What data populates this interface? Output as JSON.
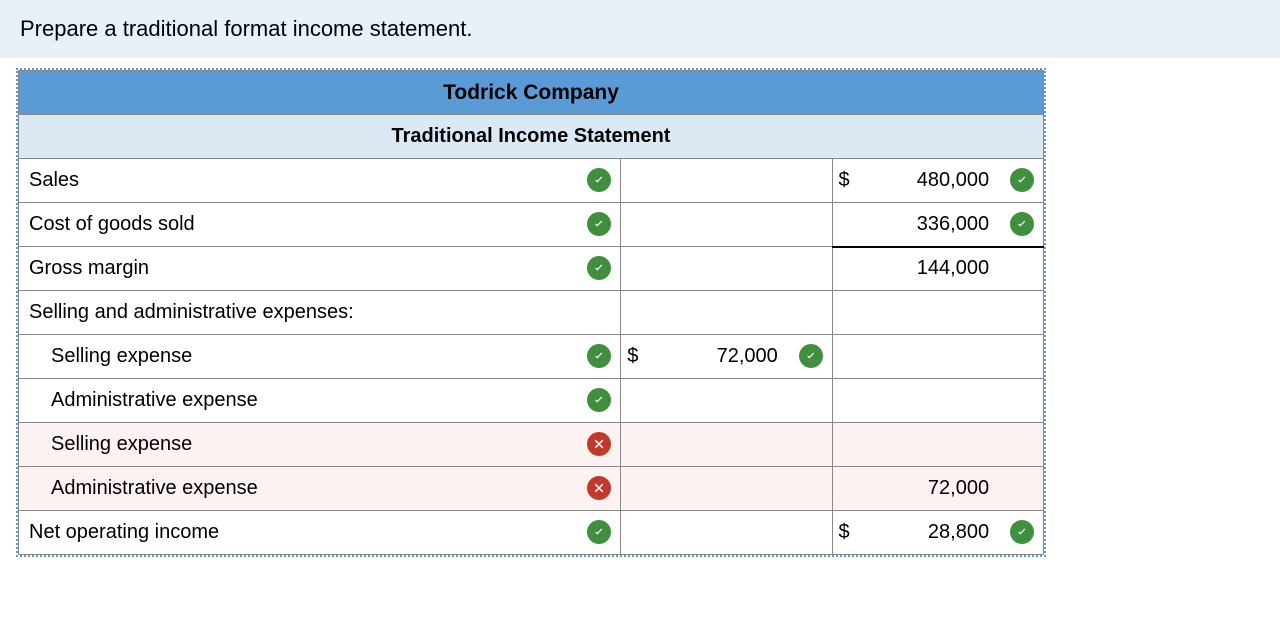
{
  "instruction": "Prepare a traditional format income statement.",
  "company": "Todrick Company",
  "statement_title": "Traditional Income Statement",
  "currency_symbol": "$",
  "colors": {
    "banner_bg": "#e8f1f8",
    "header_bg": "#5b9bd5",
    "subheader_bg": "#dbe9f5",
    "border_dotted": "#5b9bd5",
    "correct": "#3f8f3f",
    "incorrect": "#c0392b",
    "error_row_bg": "#fdf2f2"
  },
  "rows": [
    {
      "label": "Sales",
      "indent": false,
      "status": "correct",
      "col1": {
        "dollar": "",
        "value": "",
        "status": ""
      },
      "col2": {
        "dollar": "$",
        "value": "480,000",
        "status": "correct"
      }
    },
    {
      "label": "Cost of goods sold",
      "indent": false,
      "status": "correct",
      "col1": {
        "dollar": "",
        "value": "",
        "status": ""
      },
      "col2": {
        "dollar": "",
        "value": "336,000",
        "status": "correct"
      }
    },
    {
      "label": "Gross margin",
      "indent": false,
      "status": "correct",
      "col1": {
        "dollar": "",
        "value": "",
        "status": ""
      },
      "col2": {
        "dollar": "",
        "value": "144,000",
        "status": ""
      }
    },
    {
      "label": "Selling and administrative expenses:",
      "indent": false,
      "status": "",
      "col1": {
        "dollar": "",
        "value": "",
        "status": ""
      },
      "col2": {
        "dollar": "",
        "value": "",
        "status": ""
      }
    },
    {
      "label": "Selling expense",
      "indent": true,
      "status": "correct",
      "col1": {
        "dollar": "$",
        "value": "72,000",
        "status": "correct"
      },
      "col2": {
        "dollar": "",
        "value": "",
        "status": ""
      }
    },
    {
      "label": "Administrative expense",
      "indent": true,
      "status": "correct",
      "col1": {
        "dollar": "",
        "value": "",
        "status": ""
      },
      "col2": {
        "dollar": "",
        "value": "",
        "status": ""
      }
    },
    {
      "label": "Selling expense",
      "indent": true,
      "status": "incorrect",
      "col1": {
        "dollar": "",
        "value": "",
        "status": ""
      },
      "col2": {
        "dollar": "",
        "value": "",
        "status": ""
      }
    },
    {
      "label": "Administrative expense",
      "indent": true,
      "status": "incorrect",
      "col1": {
        "dollar": "",
        "value": "",
        "status": ""
      },
      "col2": {
        "dollar": "",
        "value": "72,000",
        "status": ""
      }
    },
    {
      "label": "Net operating income",
      "indent": false,
      "status": "correct",
      "col1": {
        "dollar": "",
        "value": "",
        "status": ""
      },
      "col2": {
        "dollar": "$",
        "value": "28,800",
        "status": "correct"
      }
    }
  ]
}
